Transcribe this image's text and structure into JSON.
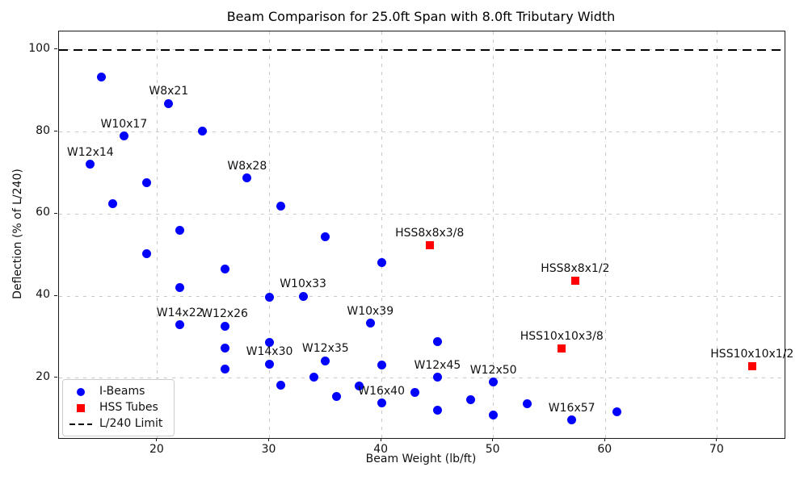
{
  "chart_data": {
    "type": "scatter",
    "title": "Beam Comparison for 25.0ft Span with 8.0ft Tributary Width",
    "xlabel": "Beam Weight (lb/ft)",
    "ylabel": "Deflection (% of L/240)",
    "xlim": [
      11.2,
      76.0
    ],
    "ylim": [
      5.4,
      104.5
    ],
    "x_ticks": [
      20,
      30,
      40,
      50,
      60,
      70
    ],
    "y_ticks": [
      20,
      40,
      60,
      80,
      100
    ],
    "grid": true,
    "grid_style": "dashed",
    "legend_position": "lower left",
    "limit_line": {
      "y": 100,
      "label": "L/240 Limit",
      "color": "#000000",
      "style": "dashed"
    },
    "series": [
      {
        "name": "I-Beams",
        "marker": "circle",
        "color": "#0000ff",
        "points": [
          {
            "x": 14,
            "y": 72.1,
            "label": "W12x14"
          },
          {
            "x": 15,
            "y": 93.3,
            "label": ""
          },
          {
            "x": 16,
            "y": 62.6,
            "label": ""
          },
          {
            "x": 17,
            "y": 79.0,
            "label": "W10x17"
          },
          {
            "x": 19,
            "y": 67.7,
            "label": ""
          },
          {
            "x": 19,
            "y": 50.3,
            "label": ""
          },
          {
            "x": 21,
            "y": 87.0,
            "label": "W8x21"
          },
          {
            "x": 22,
            "y": 56.0,
            "label": ""
          },
          {
            "x": 22,
            "y": 42.1,
            "label": ""
          },
          {
            "x": 22,
            "y": 33.0,
            "label": "W14x22"
          },
          {
            "x": 24,
            "y": 80.3,
            "label": ""
          },
          {
            "x": 26,
            "y": 46.5,
            "label": ""
          },
          {
            "x": 26,
            "y": 32.7,
            "label": "W12x26"
          },
          {
            "x": 26,
            "y": 27.4,
            "label": ""
          },
          {
            "x": 26,
            "y": 22.3,
            "label": ""
          },
          {
            "x": 28,
            "y": 68.8,
            "label": "W8x28"
          },
          {
            "x": 30,
            "y": 39.8,
            "label": ""
          },
          {
            "x": 30,
            "y": 28.7,
            "label": ""
          },
          {
            "x": 30,
            "y": 23.4,
            "label": "W14x30"
          },
          {
            "x": 31,
            "y": 61.9,
            "label": ""
          },
          {
            "x": 31,
            "y": 18.2,
            "label": ""
          },
          {
            "x": 33,
            "y": 40.0,
            "label": "W10x33"
          },
          {
            "x": 34,
            "y": 20.3,
            "label": ""
          },
          {
            "x": 35,
            "y": 54.4,
            "label": ""
          },
          {
            "x": 35,
            "y": 24.2,
            "label": "W12x35"
          },
          {
            "x": 36,
            "y": 15.6,
            "label": ""
          },
          {
            "x": 38,
            "y": 18.1,
            "label": ""
          },
          {
            "x": 39,
            "y": 33.4,
            "label": "W10x39"
          },
          {
            "x": 40,
            "y": 48.2,
            "label": ""
          },
          {
            "x": 40,
            "y": 23.1,
            "label": ""
          },
          {
            "x": 40,
            "y": 13.9,
            "label": "W16x40"
          },
          {
            "x": 43,
            "y": 16.6,
            "label": ""
          },
          {
            "x": 45,
            "y": 28.8,
            "label": ""
          },
          {
            "x": 45,
            "y": 20.2,
            "label": "W12x45"
          },
          {
            "x": 45,
            "y": 12.1,
            "label": ""
          },
          {
            "x": 48,
            "y": 14.8,
            "label": ""
          },
          {
            "x": 50,
            "y": 19.0,
            "label": "W12x50"
          },
          {
            "x": 50,
            "y": 11.1,
            "label": ""
          },
          {
            "x": 53,
            "y": 13.8,
            "label": ""
          },
          {
            "x": 57,
            "y": 9.8,
            "label": "W16x57"
          },
          {
            "x": 61,
            "y": 11.8,
            "label": ""
          }
        ]
      },
      {
        "name": "HSS Tubes",
        "marker": "square",
        "color": "#ff0000",
        "points": [
          {
            "x": 44.3,
            "y": 52.4,
            "label": "HSS8x8x3/8"
          },
          {
            "x": 57.3,
            "y": 43.8,
            "label": "HSS8x8x1/2"
          },
          {
            "x": 56.1,
            "y": 27.2,
            "label": "HSS10x10x3/8"
          },
          {
            "x": 73.1,
            "y": 22.9,
            "label": "HSS10x10x1/2"
          }
        ]
      }
    ]
  },
  "colors": {
    "background": "#ffffff",
    "grid": "#c9c9c9",
    "axis": "#1a1a1a",
    "i_beam": "#0000ff",
    "hss_tube": "#ff0000",
    "limit": "#000000"
  }
}
